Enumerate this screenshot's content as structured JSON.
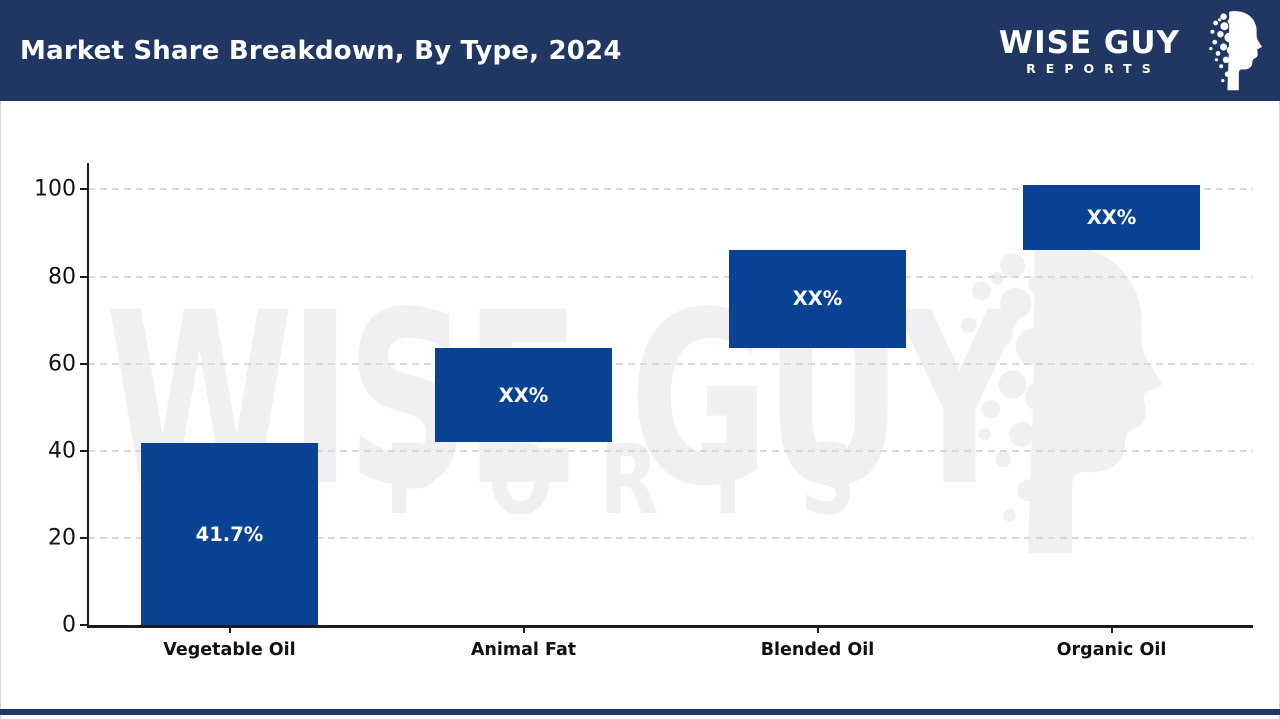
{
  "header": {
    "title": "Market Share Breakdown, By Type, 2024",
    "logo": {
      "line1": "WISE GUY",
      "line2": "REPORTS"
    }
  },
  "watermark": {
    "line1": "WISE GUY",
    "line2": "PORTS"
  },
  "footer": {
    "bar_color": "#203764"
  },
  "chart_data": {
    "type": "bar",
    "subtype": "waterfall",
    "title": "Market Share Breakdown, By Type, 2024",
    "categories": [
      "Vegetable Oil",
      "Animal Fat",
      "Blended Oil",
      "Organic Oil"
    ],
    "segments": [
      {
        "category": "Vegetable Oil",
        "start": 0,
        "end": 41.7,
        "label": "41.7%"
      },
      {
        "category": "Animal Fat",
        "start": 42.0,
        "end": 63.5,
        "label": "XX%"
      },
      {
        "category": "Blended Oil",
        "start": 63.7,
        "end": 86.1,
        "label": "XX%"
      },
      {
        "category": "Organic Oil",
        "start": 86.1,
        "end": 100.9,
        "label": "XX%"
      }
    ],
    "yticks": [
      0,
      20,
      40,
      60,
      80,
      100
    ],
    "ylim": [
      0,
      106
    ],
    "xlabel": "",
    "ylabel": "",
    "bar_color": "#0a4294",
    "grid": "dashed-horizontal",
    "gridline_color": "#d9d9d9",
    "axis_color": "#1c1c1c",
    "legend": "none"
  }
}
